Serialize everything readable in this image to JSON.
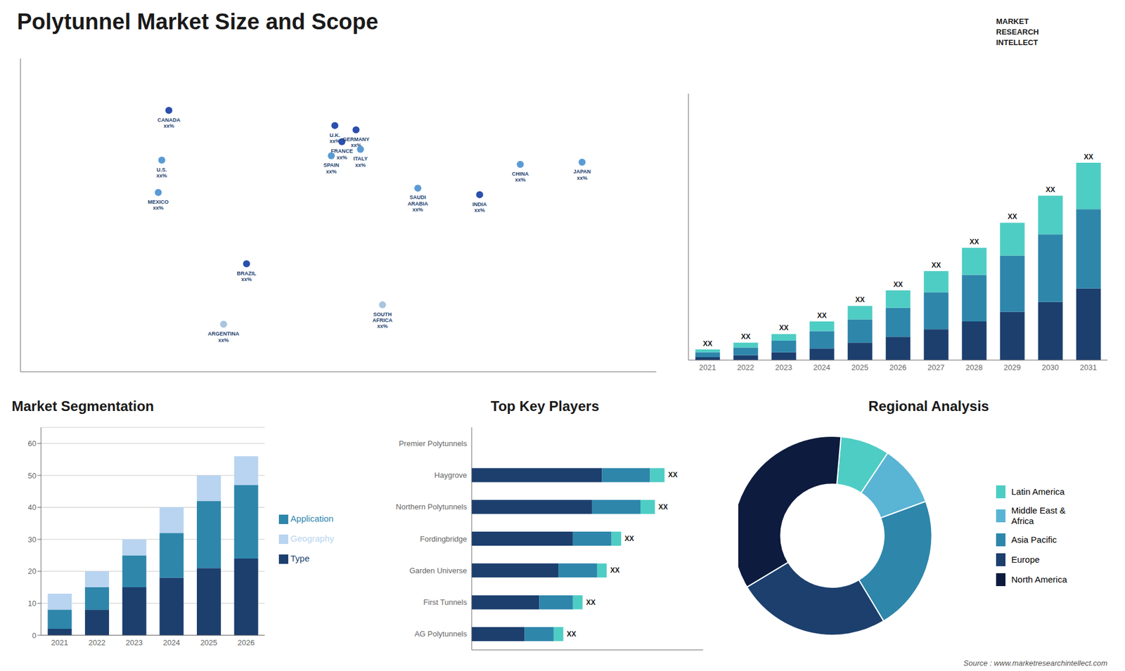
{
  "chart_data": [
    {
      "type": "scatter",
      "title": "Polytunnel Market Size and Scope",
      "xlim": [
        -180,
        180
      ],
      "ylim": [
        -60,
        85
      ],
      "tick_labels": false,
      "grid": false,
      "annotations": [
        {
          "text": "CANADA\nxx%",
          "x": -96,
          "y": 61,
          "color": "#2b4fad"
        },
        {
          "text": "U.S.\nxx%",
          "x": -100,
          "y": 38,
          "color": "#5b9bd5"
        },
        {
          "text": "MEXICO\nxx%",
          "x": -102,
          "y": 23,
          "color": "#5b9bd5"
        },
        {
          "text": "BRAZIL\nxx%",
          "x": -52,
          "y": -10,
          "color": "#2b4fad"
        },
        {
          "text": "ARGENTINA\nxx%",
          "x": -65,
          "y": -38,
          "color": "#a8c4e0"
        },
        {
          "text": "U.K.\nxx%",
          "x": -2,
          "y": 54,
          "color": "#2b4fad"
        },
        {
          "text": "FRANCE\nxx%",
          "x": 2,
          "y": 46.5,
          "color": "#2b4fad"
        },
        {
          "text": "GERMANY\nxx%",
          "x": 10,
          "y": 52,
          "color": "#2b4fad"
        },
        {
          "text": "SPAIN\nxx%",
          "x": -4,
          "y": 40,
          "color": "#5b9bd5"
        },
        {
          "text": "ITALY\nxx%",
          "x": 12.5,
          "y": 43,
          "color": "#5b9bd5"
        },
        {
          "text": "SAUDI\nARABIA\nxx%",
          "x": 45,
          "y": 25,
          "color": "#5b9bd5"
        },
        {
          "text": "INDIA\nxx%",
          "x": 80,
          "y": 22,
          "color": "#2b4fad"
        },
        {
          "text": "CHINA\nxx%",
          "x": 103,
          "y": 36,
          "color": "#5b9bd5"
        },
        {
          "text": "JAPAN\nxx%",
          "x": 138,
          "y": 37,
          "color": "#5b9bd5"
        },
        {
          "text": "SOUTH\nAFRICA\nxx%",
          "x": 25,
          "y": -29,
          "color": "#a8c4e0"
        }
      ]
    },
    {
      "type": "bar",
      "stacked": true,
      "categories": [
        "2021",
        "2022",
        "2023",
        "2024",
        "2025",
        "2026",
        "2027",
        "2028",
        "2029",
        "2030",
        "2031"
      ],
      "series": [
        {
          "color": "#1c3f6e",
          "values": [
            1.5,
            2.5,
            4,
            6,
            9,
            12,
            16,
            20,
            25,
            30,
            37
          ]
        },
        {
          "color": "#2e86ab",
          "values": [
            2.5,
            4,
            6,
            9,
            12,
            15,
            19,
            24,
            29,
            35,
            41
          ]
        },
        {
          "color": "#4ecdc4",
          "values": [
            1.5,
            2.5,
            3.5,
            5,
            7,
            9,
            11,
            14,
            17,
            20,
            24
          ],
          "value_labels": [
            "XX",
            "XX",
            "XX",
            "XX",
            "XX",
            "XX",
            "XX",
            "XX",
            "XX",
            "XX",
            "XX"
          ]
        }
      ],
      "ylim": [
        0,
        137.7
      ],
      "grid": false,
      "tick_labels": "x",
      "annotations": [
        "MARKET\nRESEARCH\nINTELLECT"
      ]
    },
    {
      "type": "bar",
      "stacked": true,
      "title": "Market Segmentation",
      "categories": [
        "2021",
        "2022",
        "2023",
        "2024",
        "2025",
        "2026"
      ],
      "series": [
        {
          "name": "Type",
          "color": "#1c3f6e",
          "values": [
            2,
            8,
            15,
            18,
            21,
            24
          ]
        },
        {
          "name": "Application",
          "color": "#2e86ab",
          "values": [
            6,
            7,
            10,
            14,
            21,
            23
          ]
        },
        {
          "name": "Geography",
          "color": "#b8d4f0",
          "values": [
            5,
            5,
            5,
            8,
            8,
            9
          ]
        }
      ],
      "ylim": [
        0,
        65
      ],
      "yticks": [
        0,
        10,
        20,
        30,
        40,
        50,
        60
      ],
      "grid": true,
      "legend": "right"
    },
    {
      "type": "bar",
      "stacked": true,
      "orientation": "horizontal",
      "title": "Top Key Players",
      "categories": [
        "Premier Polytunnels",
        "Haygrove",
        "Northern Polytunnels",
        "Fordingbridge",
        "Garden Universe",
        "First Tunnels",
        "AG Polytunnels"
      ],
      "series": [
        {
          "color": "#1c3f6e",
          "values": [
            0,
            27,
            25,
            21,
            18,
            14,
            11
          ]
        },
        {
          "color": "#2e86ab",
          "values": [
            0,
            10,
            10,
            8,
            8,
            7,
            6
          ]
        },
        {
          "color": "#4ecdc4",
          "values": [
            0,
            3,
            3,
            2,
            2,
            2,
            2
          ],
          "value_labels": [
            null,
            "XX",
            "XX",
            "XX",
            "XX",
            "XX",
            "XX"
          ]
        }
      ],
      "xlim": [
        0,
        48
      ],
      "grid": false,
      "tick_labels": "y"
    },
    {
      "type": "pie",
      "title": "Regional Analysis",
      "categories": [
        "Latin America",
        "Middle East &\nAfrica",
        "Asia Pacific",
        "Europe",
        "North America"
      ],
      "values": [
        8,
        10,
        22,
        25,
        35
      ],
      "colors": [
        "#4ecdc4",
        "#5ab4d4",
        "#2e86ab",
        "#1c3f6e",
        "#0d1b3e"
      ],
      "legend": "right",
      "annotations": [
        "Source : www.marketresearchintellect.com"
      ]
    }
  ]
}
